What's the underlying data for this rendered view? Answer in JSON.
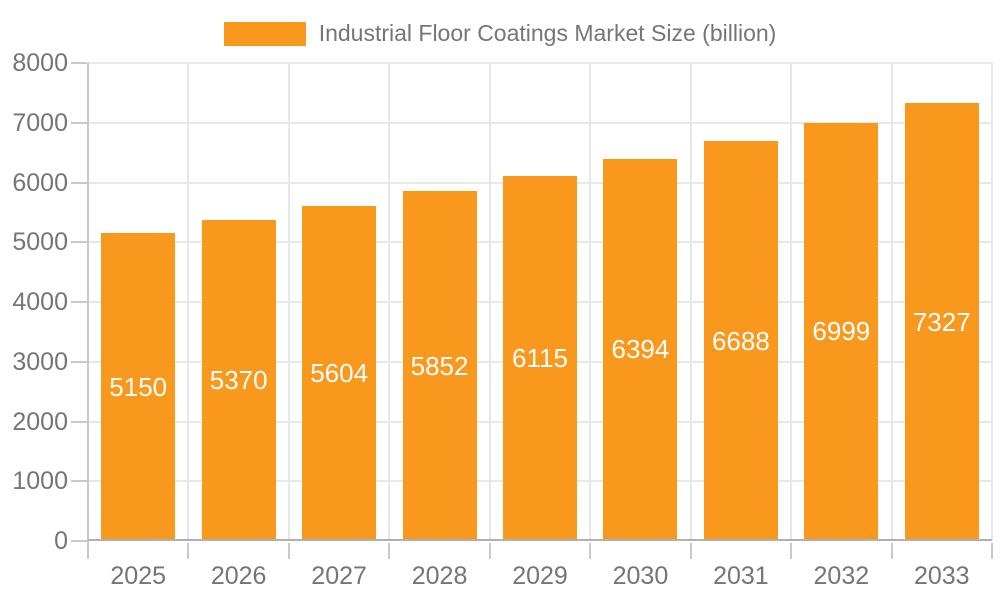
{
  "chart_data": {
    "type": "bar",
    "title": "Industrial Floor Coatings Market Size (billion)",
    "categories": [
      "2025",
      "2026",
      "2027",
      "2028",
      "2029",
      "2030",
      "2031",
      "2032",
      "2033"
    ],
    "values": [
      5150,
      5370,
      5604,
      5852,
      6115,
      6394,
      6688,
      6999,
      7327
    ],
    "xlabel": "",
    "ylabel": "",
    "ylim": [
      0,
      8000
    ],
    "ytick_step": 1000,
    "ytick_labels": [
      "0",
      "1000",
      "2000",
      "3000",
      "4000",
      "5000",
      "6000",
      "7000",
      "8000"
    ],
    "grid": true,
    "legend_position": "top",
    "value_labels": "centered-inside-bars"
  },
  "colors": {
    "bar": "#F8981D",
    "grid": "#E8E8E8",
    "axis": "#C9C9C9",
    "baseline": "#B0B0B0",
    "label": "#757575",
    "value_label": "#FFFFFF",
    "background": "#FFFFFF"
  }
}
